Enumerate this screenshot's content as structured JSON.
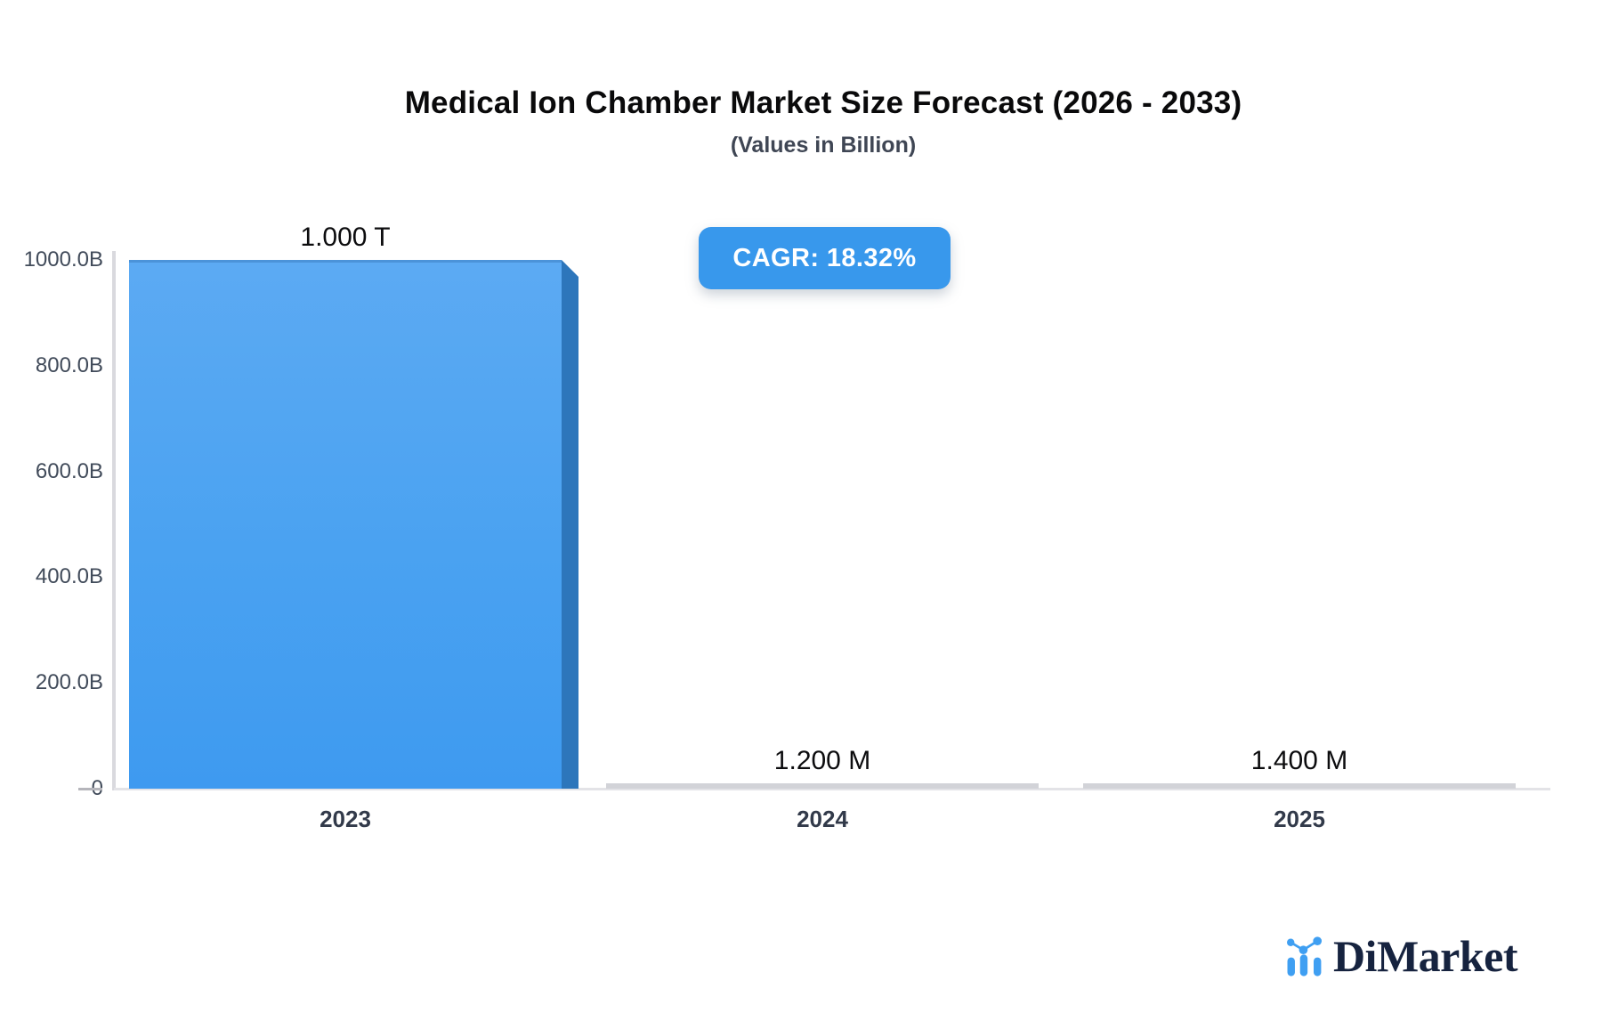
{
  "title": "Medical Ion Chamber Market Size Forecast (2026 - 2033)",
  "subtitle": "(Values in Billion)",
  "cagr_badge": "CAGR: 18.32%",
  "brand": {
    "name": "DiMarket",
    "icon": "bar-line-chart-icon"
  },
  "colors": {
    "bar_fill": "#4aa2f1",
    "bar_side": "#2d76bb",
    "badge_bg": "#3898ec",
    "tiny_bar": "#d2d3d8",
    "axis_line": "#d9d9de",
    "brand_blue": "#3f9ff2",
    "brand_navy": "#16233f"
  },
  "chart_data": {
    "type": "bar",
    "title": "Medical Ion Chamber Market Size Forecast (2026 - 2033)",
    "subtitle": "(Values in Billion)",
    "annotation": "CAGR: 18.32%",
    "categories": [
      "2023",
      "2024",
      "2025"
    ],
    "values_billion": [
      1000,
      0.0012,
      0.0014
    ],
    "value_labels": [
      "1.000 T",
      "1.200 M",
      "1.400 M"
    ],
    "y_ticks": [
      {
        "label": "1000.0B",
        "value": 1000
      },
      {
        "label": "800.0B",
        "value": 800
      },
      {
        "label": "600.0B",
        "value": 600
      },
      {
        "label": "400.0B",
        "value": 400
      },
      {
        "label": "200.0B",
        "value": 200
      },
      {
        "label": "0",
        "value": 0
      }
    ],
    "ylim": [
      0,
      1000
    ],
    "xlabel": "",
    "ylabel": "",
    "grid": false,
    "legend": false
  }
}
